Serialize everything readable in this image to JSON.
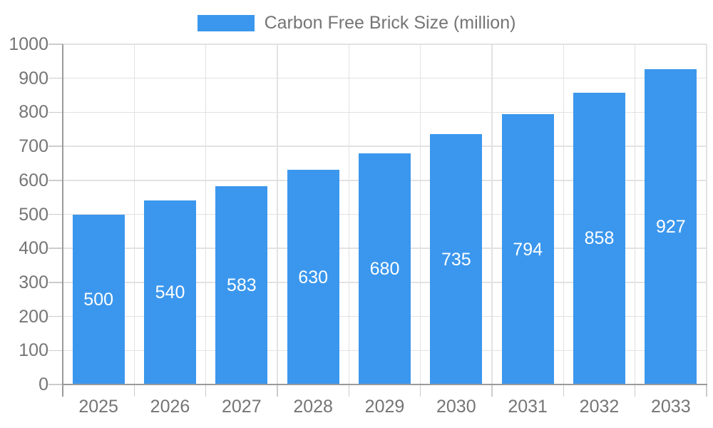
{
  "chart_data": {
    "type": "bar",
    "title": "",
    "legend": {
      "label": "Carbon Free Brick Size (million)",
      "position": "top"
    },
    "categories": [
      "2025",
      "2026",
      "2027",
      "2028",
      "2029",
      "2030",
      "2031",
      "2032",
      "2033"
    ],
    "series": [
      {
        "name": "Carbon Free Brick Size (million)",
        "values": [
          500,
          540,
          583,
          630,
          680,
          735,
          794,
          858,
          927
        ]
      }
    ],
    "bar_value_labels": [
      "500",
      "540",
      "583",
      "630",
      "680",
      "735",
      "794",
      "858",
      "927"
    ],
    "xlabel": "",
    "ylabel": "",
    "ylim": [
      0,
      1000
    ],
    "y_ticks": [
      0,
      100,
      200,
      300,
      400,
      500,
      600,
      700,
      800,
      900,
      1000
    ],
    "grid": true,
    "legend_position": "top-center",
    "colors": {
      "bar": "#3b97ed",
      "axis_line": "#9a9a9a",
      "grid_line": "#e2e2e2",
      "tick_line": "#cccccc",
      "label_text": "#757575",
      "bar_label_text": "#ffffff",
      "background": "#ffffff"
    }
  }
}
